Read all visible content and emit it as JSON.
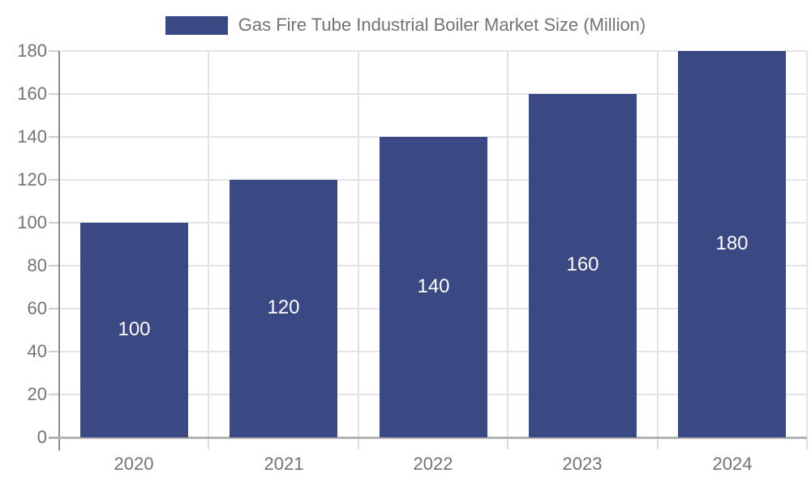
{
  "chart_data": {
    "type": "bar",
    "title": "Gas Fire Tube Industrial Boiler Market Size (Million)",
    "categories": [
      "2020",
      "2021",
      "2022",
      "2023",
      "2024"
    ],
    "values": [
      100,
      120,
      140,
      160,
      180
    ],
    "series": [
      {
        "name": "Gas Fire Tube Industrial Boiler Market Size (Million)",
        "values": [
          100,
          120,
          140,
          160,
          180
        ]
      }
    ],
    "xlabel": "",
    "ylabel": "",
    "ylim": [
      0,
      180
    ],
    "yticks": [
      0,
      20,
      40,
      60,
      80,
      100,
      120,
      140,
      160,
      180
    ],
    "grid": true,
    "legend_position": "top",
    "value_labels_shown": true
  },
  "colors": {
    "bar": "#3A4983",
    "grid": "#E4E4E8",
    "axis_y": "#8C8C8C",
    "axis_x": "#B3B3B3",
    "tick_y": "#CFCFCF",
    "tick_x": "#DDDDDD",
    "tick_text": "#737373",
    "value_label": "#FFFFFF"
  }
}
